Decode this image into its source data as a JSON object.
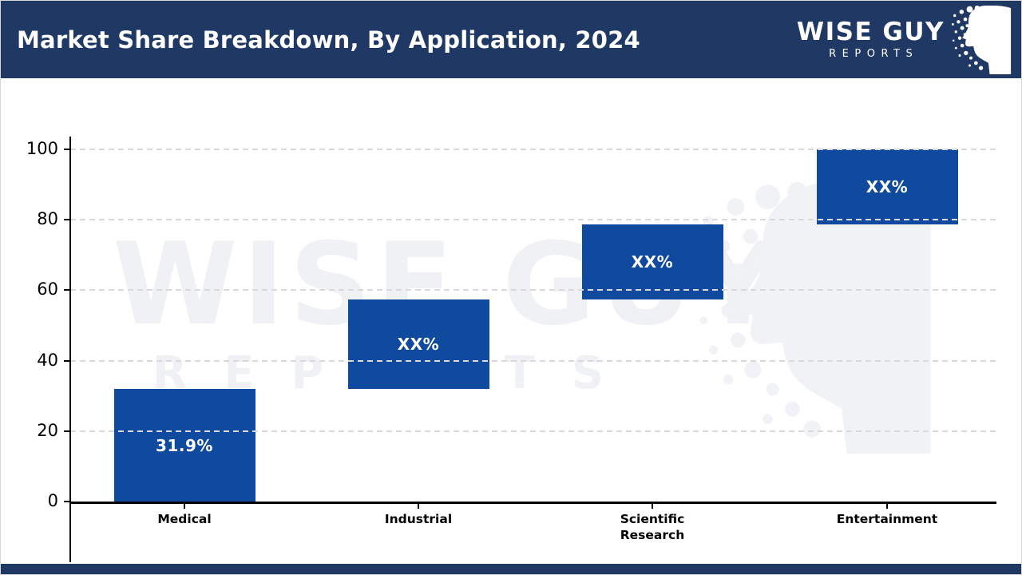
{
  "header": {
    "title": "Market Share Breakdown, By Application, 2024",
    "logo_line1": "WISE GUY",
    "logo_line2": "REPORTS"
  },
  "watermark": {
    "line1": "WISE GUY",
    "line2": "REPORTS"
  },
  "chart_data": {
    "type": "bar",
    "subtype": "floating-segment-waterfall",
    "title": "Market Share Breakdown, By Application, 2024",
    "categories": [
      "Medical",
      "Industrial",
      "Scientific Research",
      "Entertainment"
    ],
    "category_tick_labels": [
      "Medical",
      "Industrial",
      "Scientific\nResearch",
      "Entertainment"
    ],
    "segments": [
      {
        "category": "Medical",
        "start": 0,
        "end": 31.9,
        "label": "31.9%"
      },
      {
        "category": "Industrial",
        "start": 31.9,
        "end": 57.3,
        "label": "XX%"
      },
      {
        "category": "Scientific Research",
        "start": 57.3,
        "end": 78.6,
        "label": "XX%"
      },
      {
        "category": "Entertainment",
        "start": 78.6,
        "end": 100,
        "label": "XX%"
      }
    ],
    "ylim": [
      0,
      100
    ],
    "yticks": [
      0,
      20,
      40,
      60,
      80,
      100
    ],
    "grid": "horizontal-dashed",
    "legend": "none",
    "bar_color": "#0f4a9f",
    "bar_label_color": "#ffffff"
  },
  "colors": {
    "header_bg": "#1f3864",
    "footer_bg": "#1f3864",
    "bar": "#0f4a9f",
    "grid": "#d9d9d9",
    "axis": "#000000",
    "watermark": "#f0f1f4"
  }
}
